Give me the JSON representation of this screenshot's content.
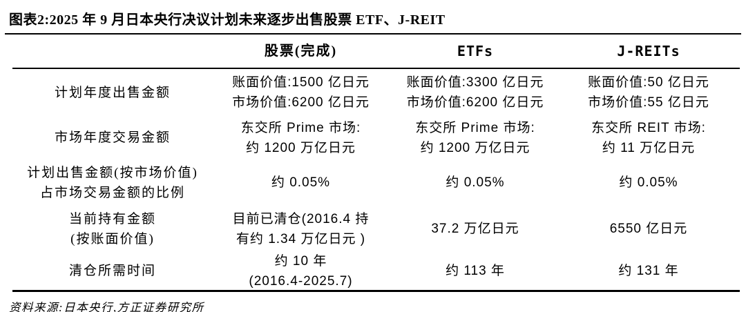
{
  "page": {
    "title": "图表2:2025 年 9 月日本央行决议计划未来逐步出售股票 ETF、J-REIT",
    "source": "资料来源:日本央行,方正证券研究所"
  },
  "colors": {
    "background": "#ffffff",
    "ink": "#000000",
    "rule": "#000000"
  },
  "table": {
    "headers": {
      "blank": "",
      "stocks": "股票(完成)",
      "etfs": "ETFs",
      "jreits": "J-REITs"
    },
    "rows": [
      {
        "label": [
          "计划年度出售金额"
        ],
        "stocks": [
          "账面价值:1500 亿日元",
          "市场价值:6200 亿日元"
        ],
        "etfs": [
          "账面价值:3300 亿日元",
          "市场价值:6200 亿日元"
        ],
        "jreits": [
          "账面价值:50 亿日元",
          "市场价值:55 亿日元"
        ]
      },
      {
        "label": [
          "市场年度交易金额"
        ],
        "stocks": [
          "东交所 Prime 市场:",
          "约 1200 万亿日元"
        ],
        "etfs": [
          "东交所 Prime 市场:",
          "约 1200 万亿日元"
        ],
        "jreits": [
          "东交所 REIT 市场:",
          "约 11 万亿日元"
        ]
      },
      {
        "label": [
          "计划出售金额(按市场价值)",
          "占市场交易金额的比例"
        ],
        "stocks": [
          "约 0.05%"
        ],
        "etfs": [
          "约 0.05%"
        ],
        "jreits": [
          "约 0.05%"
        ]
      },
      {
        "label": [
          "当前持有金额",
          "(按账面价值)"
        ],
        "stocks": [
          "目前已清仓(2016.4 持",
          "有约 1.34 万亿日元 )"
        ],
        "etfs": [
          "37.2 万亿日元"
        ],
        "jreits": [
          "6550 亿日元"
        ]
      },
      {
        "label": [
          "清仓所需时间"
        ],
        "stocks": [
          "约 10 年",
          "(2016.4-2025.7)"
        ],
        "etfs": [
          "约 113 年"
        ],
        "jreits": [
          "约 131 年"
        ]
      }
    ]
  }
}
